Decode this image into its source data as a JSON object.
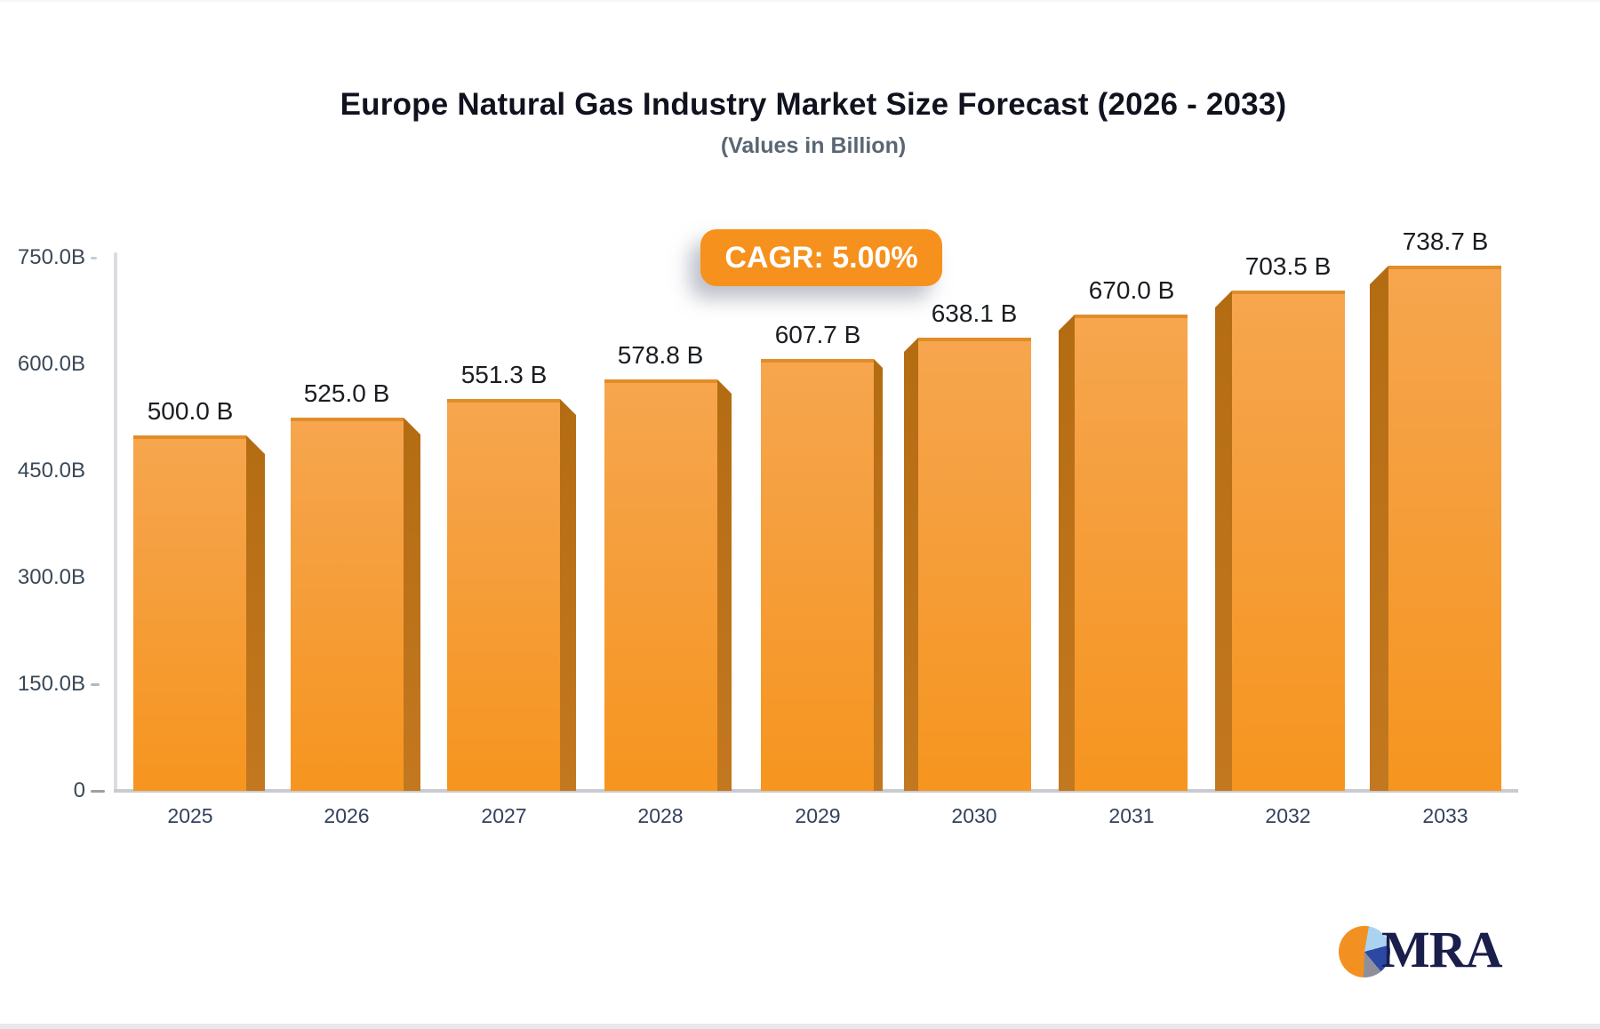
{
  "header": {
    "title": "Europe Natural Gas Industry Market Size Forecast (2026 - 2033)",
    "subtitle": "(Values in Billion)"
  },
  "badge": {
    "label": "CAGR: 5.00%"
  },
  "logo": {
    "text": "MRA"
  },
  "colors": {
    "accent_orange": "#f6911d",
    "bar_front_top": "#f7a64e",
    "bar_front_bottom": "#f6951f",
    "bar_side": "#bc7219",
    "bar_top_edge": "#e18d2a",
    "axis_line": "#c9cbd1",
    "title_text": "#10121e",
    "subtitle_text": "#5a6673",
    "tick_text": "#3a4856",
    "year_text": "#33415c",
    "value_text": "#1a1d21",
    "logo_navy": "#1a1e4b",
    "badge_text": "#ffffff"
  },
  "chart_data": {
    "type": "bar",
    "title": "Europe Natural Gas Industry Market Size Forecast (2026 - 2033)",
    "subtitle": "(Values in Billion)",
    "annotation": "CAGR: 5.00%",
    "categories": [
      "2025",
      "2026",
      "2027",
      "2028",
      "2029",
      "2030",
      "2031",
      "2032",
      "2033"
    ],
    "values": [
      500.0,
      525.0,
      551.3,
      578.8,
      607.7,
      638.1,
      670.0,
      703.5,
      738.7
    ],
    "value_labels": [
      "500.0 B",
      "525.0 B",
      "551.3 B",
      "578.8 B",
      "607.7 B",
      "638.1 B",
      "670.0 B",
      "703.5 B",
      "738.7 B"
    ],
    "unit": "Billion",
    "xlabel": "",
    "ylabel": "",
    "ylim": [
      0,
      750
    ],
    "yticks": {
      "labels": [
        "750.0B",
        "600.0B",
        "450.0B",
        "300.0B",
        "150.0B",
        "0"
      ],
      "values": [
        750,
        600,
        450,
        300,
        150,
        0
      ]
    },
    "grid": false,
    "legend": "none",
    "bar_style": "3d-perspective-orange"
  }
}
